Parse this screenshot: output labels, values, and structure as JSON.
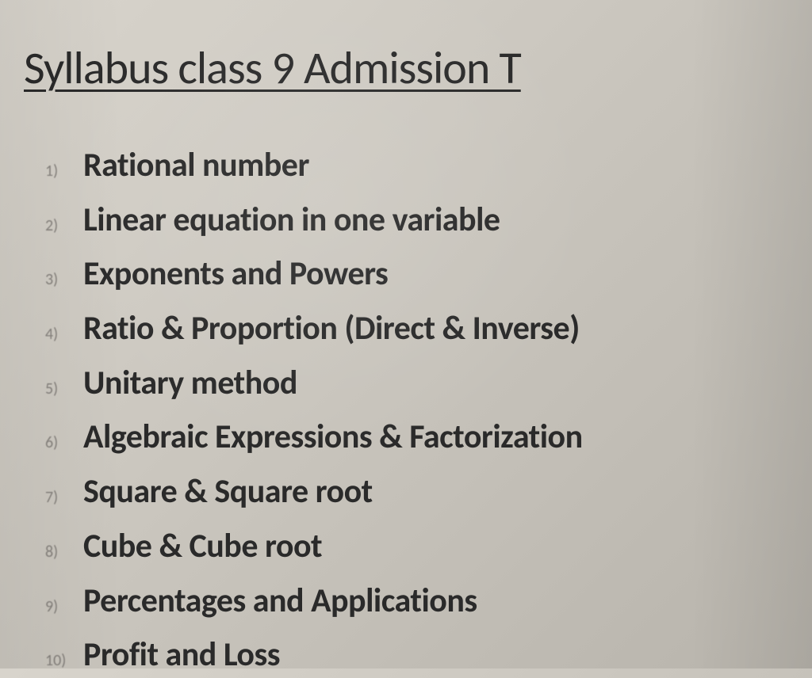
{
  "document": {
    "title": "Syllabus class 9 Admission T",
    "title_fontsize": 58,
    "title_color": "#2a2a2a",
    "title_underlined": true,
    "background_gradient": [
      "#d8d4cc",
      "#c8c4bc",
      "#b8b4ac"
    ],
    "item_fontsize": 42,
    "item_fontweight": 700,
    "item_color": "#2a2a2a",
    "bullet_fontsize": 20,
    "bullet_color": "#787470",
    "items": [
      {
        "num": "1)",
        "text": "Rational number"
      },
      {
        "num": "2)",
        "text": "Linear equation in one variable"
      },
      {
        "num": "3)",
        "text": "Exponents and Powers"
      },
      {
        "num": "4)",
        "text": "Ratio & Proportion (Direct & Inverse)"
      },
      {
        "num": "5)",
        "text": "Unitary method"
      },
      {
        "num": "6)",
        "text": "Algebraic Expressions & Factorization"
      },
      {
        "num": "7)",
        "text": "Square & Square root"
      },
      {
        "num": "8)",
        "text": "Cube & Cube root"
      },
      {
        "num": "9)",
        "text": "Percentages and Applications"
      },
      {
        "num": "10)",
        "text": "Profit and Loss"
      }
    ]
  }
}
